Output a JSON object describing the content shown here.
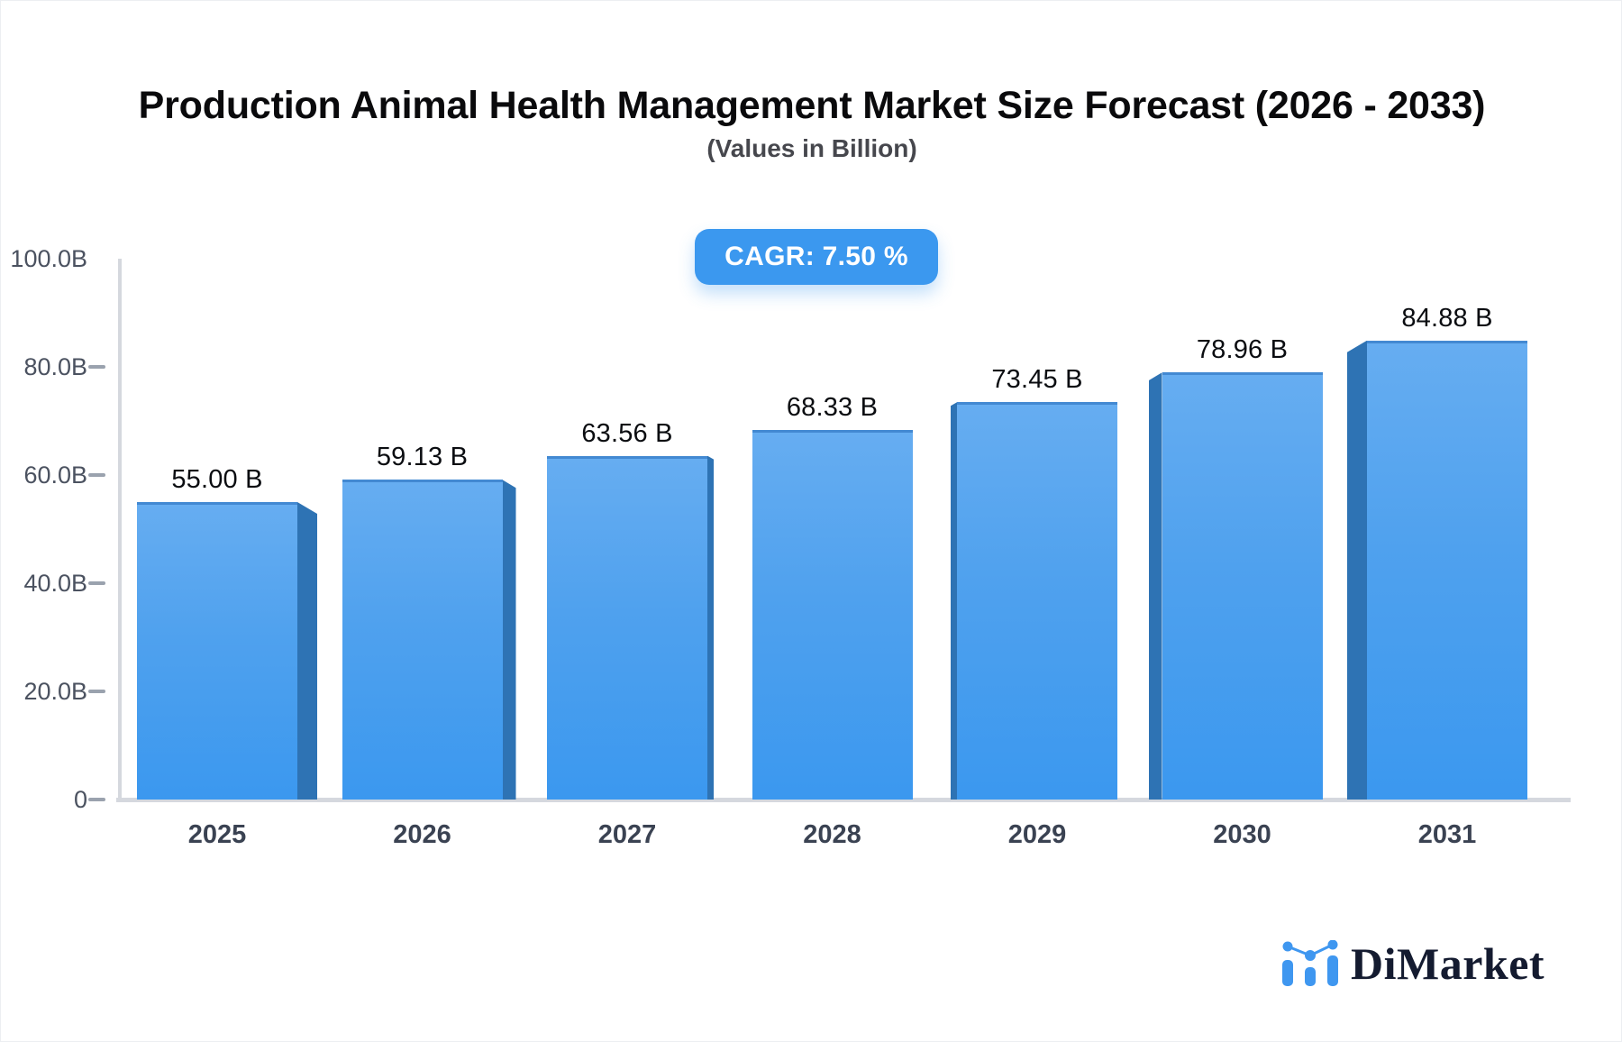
{
  "header": {
    "title": "Production Animal Health Management Market Size Forecast (2026 - 2033)",
    "subtitle": "(Values in Billion)"
  },
  "badge": {
    "label": "CAGR: 7.50 %"
  },
  "chart_data": {
    "type": "bar",
    "title": "Production Animal Health Management Market Size Forecast (2026 - 2033)",
    "subtitle": "(Values in Billion)",
    "categories": [
      "2025",
      "2026",
      "2027",
      "2028",
      "2029",
      "2030",
      "2031"
    ],
    "values": [
      55.0,
      59.13,
      63.56,
      68.33,
      73.45,
      78.96,
      84.88
    ],
    "value_labels": [
      "55.00 B",
      "59.13 B",
      "63.56 B",
      "68.33 B",
      "73.45 B",
      "78.96 B",
      "84.88 B"
    ],
    "xlabel": "",
    "ylabel": "",
    "ylim": [
      0,
      100
    ],
    "y_ticks": [
      {
        "value": 100,
        "label": "100.0B",
        "dash": false
      },
      {
        "value": 80,
        "label": "80.0B",
        "dash": true
      },
      {
        "value": 60,
        "label": "60.0B",
        "dash": true
      },
      {
        "value": 40,
        "label": "40.0B",
        "dash": true
      },
      {
        "value": 20,
        "label": "20.0B",
        "dash": true
      },
      {
        "value": 0,
        "label": "0",
        "dash": true
      }
    ],
    "grid": false,
    "legend": false,
    "bar_style": "3d-perspective",
    "cagr": "7.50 %"
  },
  "colors": {
    "bar_face_top": "#66adf1",
    "bar_face_bottom": "#3b98ef",
    "bar_side": "#2e73b4",
    "bar_top_edge": "#4389d2",
    "badge_bg": "#3b98ef",
    "badge_text": "#ffffff",
    "axis_line": "#d5d8de",
    "tick_dash": "#9aa2ae",
    "y_label": "#4b5260",
    "x_label": "#3a4252",
    "value_label": "#0b0d11",
    "title": "#0a0a0c",
    "subtitle": "#46474d",
    "logo_blue": "#3f97f0",
    "logo_text": "#141b30"
  },
  "branding": {
    "name": "DiMarket",
    "icon": "bar-chart-logo-icon"
  }
}
